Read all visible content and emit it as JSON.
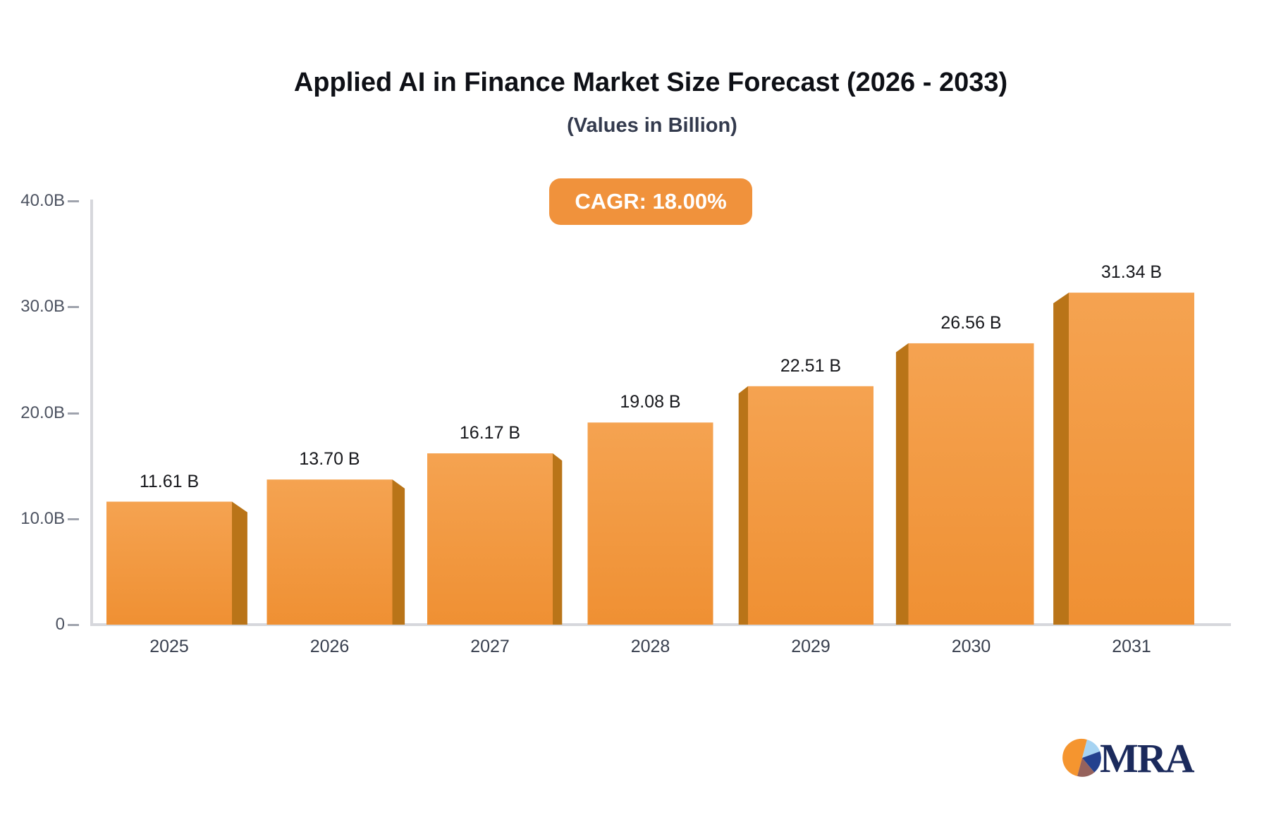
{
  "header": {
    "title": "Applied AI in Finance Market Size Forecast (2026 - 2033)",
    "subtitle": "(Values in Billion)",
    "cagr_badge": "CAGR: 18.00%"
  },
  "chart_data": {
    "type": "bar",
    "title": "Applied AI in Finance Market Size Forecast (2026 - 2033)",
    "subtitle": "(Values in Billion)",
    "annotation": "CAGR: 18.00%",
    "categories": [
      "2025",
      "2026",
      "2027",
      "2028",
      "2029",
      "2030",
      "2031"
    ],
    "values": [
      11.61,
      13.7,
      16.17,
      19.08,
      22.51,
      26.56,
      31.34
    ],
    "value_labels": [
      "11.61 B",
      "13.70 B",
      "16.17 B",
      "19.08 B",
      "22.51 B",
      "26.56 B",
      "31.34 B"
    ],
    "xlabel": "",
    "ylabel": "",
    "ylim": [
      0,
      40
    ],
    "yticks": [
      {
        "v": 0,
        "label": "0"
      },
      {
        "v": 10,
        "label": "10.0B"
      },
      {
        "v": 20,
        "label": "20.0B"
      },
      {
        "v": 30,
        "label": "30.0B"
      },
      {
        "v": 40,
        "label": "40.0B"
      }
    ],
    "grid": false,
    "legend": "none",
    "style": "pseudo-3d bars, perspective side panels toward center bar"
  },
  "colors": {
    "bar_face_top": "#f5a351",
    "bar_face_bottom": "#ef9033",
    "bar_side": "#b97418",
    "badge_orange": "#f0923c",
    "axis_line": "#d6d7dc",
    "tick_dash": "#9fa3ad",
    "tick_text": "#4c5260",
    "year_text": "#39404f",
    "value_text": "#17181c",
    "title_text": "#0e1016",
    "subtitle_text": "#333a4d",
    "logo_navy": "#1b2a5c",
    "logo_orange": "#f5952f",
    "logo_lightblue": "#a6d3f2",
    "logo_maroon": "#96625c"
  },
  "branding": {
    "logo_text": "MRA"
  }
}
